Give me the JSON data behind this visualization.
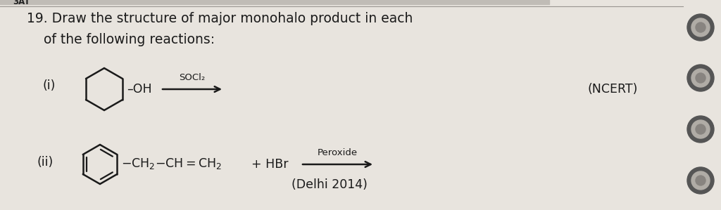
{
  "title_line1": "19. Draw the structure of major monohalo product in each",
  "title_line2": "    of the following reactions:",
  "bg_color": "#e8e4de",
  "text_color": "#1a1a1a",
  "figsize": [
    10.24,
    2.99
  ],
  "dpi": 100,
  "reaction_i_label": "(i)",
  "reaction_ii_label": "(ii)",
  "ncert_label": "(NCERT)",
  "delhi_label": "(Delhi 2014)",
  "socl2_label": "SOCl₂",
  "peroxide_label": "Peroxide",
  "ring_color": "#3a3a3a",
  "ring_bg": "#c8c4bc"
}
